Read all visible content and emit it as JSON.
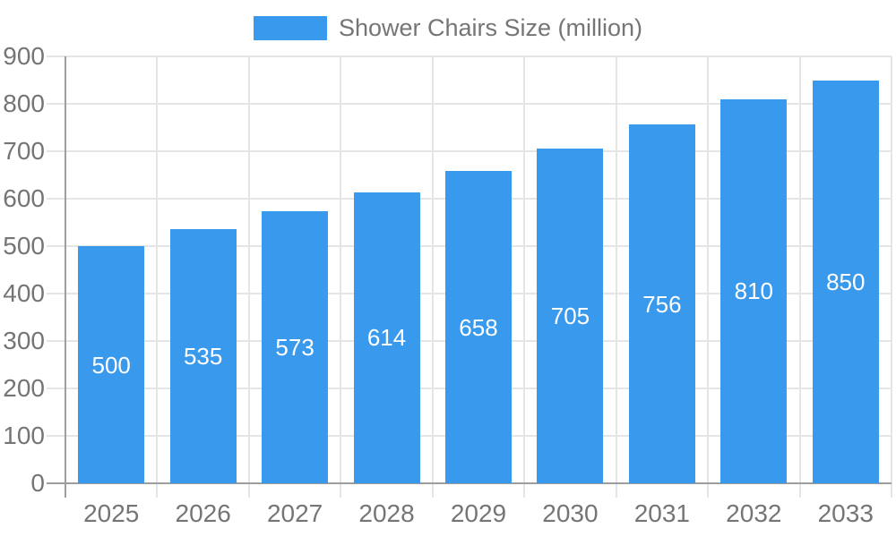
{
  "chart_data": {
    "type": "bar",
    "title": "",
    "legend": "Shower Chairs Size (million)",
    "legend_position": "top",
    "categories": [
      "2025",
      "2026",
      "2027",
      "2028",
      "2029",
      "2030",
      "2031",
      "2032",
      "2033"
    ],
    "values": [
      500,
      535,
      573,
      614,
      658,
      705,
      756,
      810,
      850
    ],
    "value_labels_shown": true,
    "xlabel": "",
    "ylabel": "",
    "ylim": [
      0,
      900
    ],
    "ytick_step": 100,
    "yticks": [
      0,
      100,
      200,
      300,
      400,
      500,
      600,
      700,
      800,
      900
    ],
    "grid": true,
    "colors": {
      "bar": "#3999EC",
      "value_label": "#ffffff",
      "tick_label": "#757575",
      "legend_text": "#757575",
      "gridline": "#e5e5e5",
      "axis": "#9e9e9e",
      "background": "#ffffff"
    }
  }
}
